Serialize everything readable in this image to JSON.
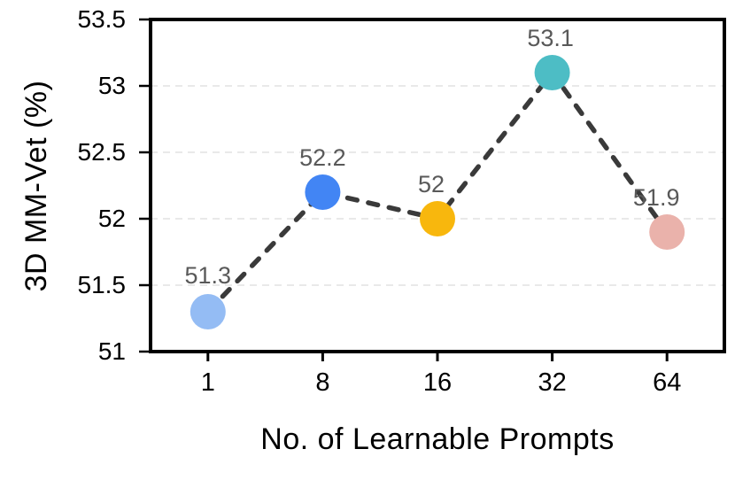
{
  "chart_data": {
    "type": "line",
    "title": "",
    "xlabel": "No. of Learnable Prompts",
    "ylabel": "3D MM-Vet (%)",
    "categories": [
      "1",
      "8",
      "16",
      "32",
      "64"
    ],
    "values": [
      51.3,
      52.2,
      52,
      53.1,
      51.9
    ],
    "point_labels": [
      "51.3",
      "52.2",
      "52",
      "53.1",
      "51.9"
    ],
    "point_colors": [
      "#94BCF4",
      "#4285F4",
      "#F8B70D",
      "#4DBDC5",
      "#EAB2AB"
    ],
    "line_color": "#3a3a3a",
    "line_style": "dashed",
    "value_label_color": "#595959",
    "axis_color": "#000000",
    "grid_color": "#e2e2e2",
    "ylim": [
      51,
      53.5
    ],
    "ytick_step": 0.5,
    "yticks": [
      "51",
      "51.5",
      "52",
      "52.5",
      "53",
      "53.5"
    ],
    "grid": "horizontal-dashed",
    "legend": "none",
    "point_radius": 20,
    "label_dx": [
      0,
      0,
      -7,
      -2,
      -12
    ],
    "label_dy": [
      -32,
      -30,
      -30,
      -30,
      -30
    ]
  }
}
